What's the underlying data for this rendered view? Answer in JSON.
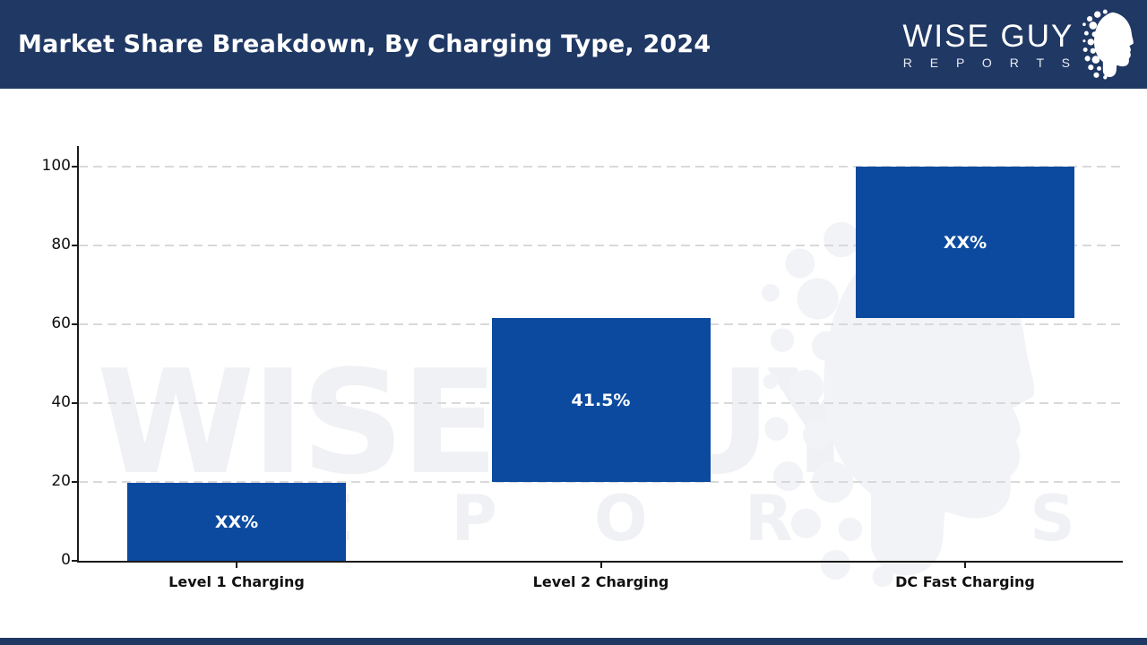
{
  "header": {
    "title": "Market Share Breakdown, By Charging Type, 2024",
    "background_color": "#203864",
    "logo": {
      "line1": "WISE GUY",
      "line2": "R E P O R T S"
    }
  },
  "watermark": {
    "line1": "WISE GUY",
    "line2": "R E P O R T S"
  },
  "chart_data": {
    "type": "bar",
    "subtype": "floating-waterfall",
    "title": "",
    "xlabel": "",
    "ylabel": "",
    "categories": [
      "Level 1 Charging",
      "Level 2 Charging",
      "DC Fast Charging"
    ],
    "segments": [
      {
        "category": "Level 1 Charging",
        "start": 0,
        "end": 19.7,
        "label": "XX%"
      },
      {
        "category": "Level 2 Charging",
        "start": 20,
        "end": 61.5,
        "label": "41.5%"
      },
      {
        "category": "DC Fast Charging",
        "start": 61.5,
        "end": 100,
        "label": "XX%"
      }
    ],
    "yticks": [
      0,
      20,
      40,
      60,
      80,
      100
    ],
    "ylim": [
      0,
      105
    ],
    "grid": "horizontal-dashed",
    "bar_color": "#0b4a9f",
    "bar_label_color": "#ffffff"
  }
}
